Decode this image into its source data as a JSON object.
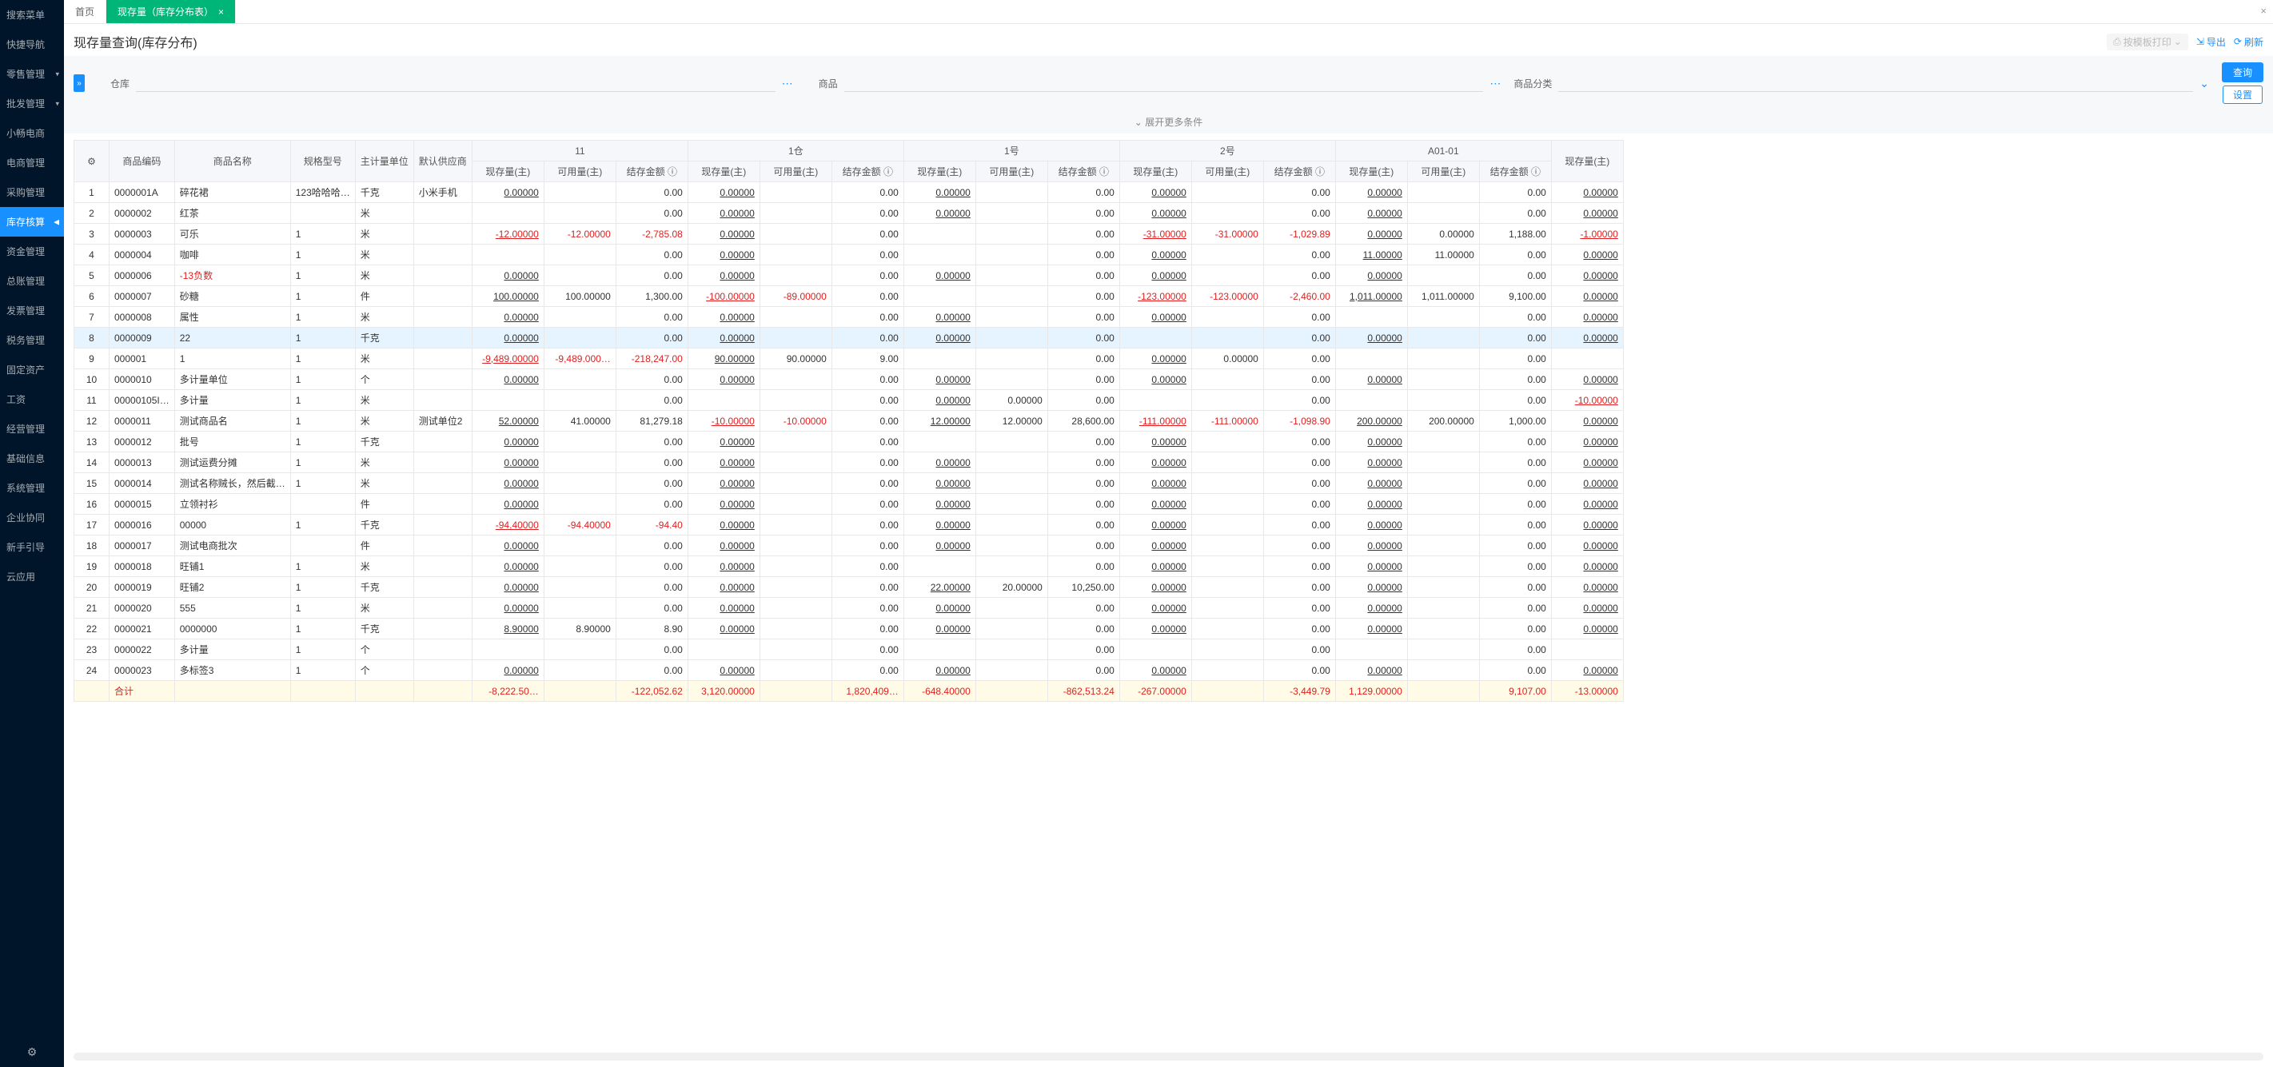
{
  "sidebar": {
    "items": [
      {
        "label": "搜索菜单",
        "hasArrow": false
      },
      {
        "label": "快捷导航",
        "hasArrow": false
      },
      {
        "label": "零售管理",
        "hasArrow": true
      },
      {
        "label": "批发管理",
        "hasArrow": true
      },
      {
        "label": "小畅电商",
        "hasArrow": false
      },
      {
        "label": "电商管理",
        "hasArrow": false
      },
      {
        "label": "采购管理",
        "hasArrow": false
      },
      {
        "label": "库存核算",
        "hasArrow": false,
        "active": true
      },
      {
        "label": "资金管理",
        "hasArrow": false
      },
      {
        "label": "总账管理",
        "hasArrow": false
      },
      {
        "label": "发票管理",
        "hasArrow": false
      },
      {
        "label": "税务管理",
        "hasArrow": false
      },
      {
        "label": "固定资产",
        "hasArrow": false
      },
      {
        "label": "工资",
        "hasArrow": false
      },
      {
        "label": "经营管理",
        "hasArrow": false
      },
      {
        "label": "基础信息",
        "hasArrow": false
      },
      {
        "label": "系统管理",
        "hasArrow": false
      },
      {
        "label": "企业协同",
        "hasArrow": false
      },
      {
        "label": "新手引导",
        "hasArrow": false
      },
      {
        "label": "云应用",
        "hasArrow": false
      }
    ],
    "gear_icon": "⚙"
  },
  "tabs": [
    {
      "label": "首页",
      "active": false
    },
    {
      "label": "现存量（库存分布表）",
      "active": true,
      "closable": true
    }
  ],
  "close_icon": "×",
  "page": {
    "title": "现存量查询(库存分布)",
    "actions": {
      "print": "按模板打印",
      "export": "导出",
      "refresh": "刷新",
      "print_icon": "⎙",
      "export_icon": "⇲",
      "refresh_icon": "⟳"
    }
  },
  "filters": {
    "collapse_icon": "»",
    "warehouse_label": "仓库",
    "product_label": "商品",
    "category_label": "商品分类",
    "more_icon": "⋯",
    "dropdown_icon": "⌄",
    "query_btn": "查询",
    "setting_btn": "设置",
    "expand_more": "展开更多条件",
    "expand_icon": "⌄"
  },
  "warehouses": [
    "11",
    "1仓",
    "1号",
    "2号",
    "A01-01"
  ],
  "sub_cols": {
    "qty": "现存量(主)",
    "avail": "可用量(主)",
    "amt": "结存金额 ⓘ"
  },
  "fixed_cols": {
    "gear": "⚙",
    "code": "商品编码",
    "name": "商品名称",
    "spec": "规格型号",
    "unit": "主计量单位",
    "supplier": "默认供应商"
  },
  "rows": [
    {
      "i": 1,
      "code": "0000001A",
      "name": "碎花裙",
      "spec": "123哈哈哈…",
      "unit": "千克",
      "supp": "小米手机",
      "v": [
        [
          "0.00000",
          "",
          "0.00"
        ],
        [
          "0.00000",
          "",
          "0.00"
        ],
        [
          "0.00000",
          "",
          "0.00"
        ],
        [
          "0.00000",
          "",
          "0.00"
        ],
        [
          "0.00000",
          "",
          "0.00"
        ]
      ],
      "next": "0.00000"
    },
    {
      "i": 2,
      "code": "0000002",
      "name": "红茶",
      "spec": "",
      "unit": "米",
      "supp": "",
      "v": [
        [
          "",
          "",
          "0.00"
        ],
        [
          "0.00000",
          "",
          "0.00"
        ],
        [
          "0.00000",
          "",
          "0.00"
        ],
        [
          "0.00000",
          "",
          "0.00"
        ],
        [
          "0.00000",
          "",
          "0.00"
        ]
      ],
      "next": "0.00000"
    },
    {
      "i": 3,
      "code": "0000003",
      "name": "可乐",
      "spec": "1",
      "unit": "米",
      "supp": "",
      "v": [
        [
          "-12.00000",
          "-12.00000",
          "-2,785.08"
        ],
        [
          "0.00000",
          "",
          "0.00"
        ],
        [
          "",
          "",
          "0.00"
        ],
        [
          "-31.00000",
          "-31.00000",
          "-1,029.89"
        ],
        [
          "0.00000",
          "0.00000",
          "1,188.00"
        ]
      ],
      "next": "-1.00000"
    },
    {
      "i": 4,
      "code": "0000004",
      "name": "咖啡",
      "spec": "1",
      "unit": "米",
      "supp": "",
      "v": [
        [
          "",
          "",
          "0.00"
        ],
        [
          "0.00000",
          "",
          "0.00"
        ],
        [
          "",
          "",
          "0.00"
        ],
        [
          "0.00000",
          "",
          "0.00"
        ],
        [
          "11.00000",
          "11.00000",
          "0.00"
        ]
      ],
      "next": "0.00000"
    },
    {
      "i": 5,
      "code": "0000006",
      "name": "-13负数",
      "nameNeg": true,
      "spec": "1",
      "unit": "米",
      "supp": "",
      "v": [
        [
          "0.00000",
          "",
          "0.00"
        ],
        [
          "0.00000",
          "",
          "0.00"
        ],
        [
          "0.00000",
          "",
          "0.00"
        ],
        [
          "0.00000",
          "",
          "0.00"
        ],
        [
          "0.00000",
          "",
          "0.00"
        ]
      ],
      "next": "0.00000"
    },
    {
      "i": 6,
      "code": "0000007",
      "name": "砂糖",
      "spec": "1",
      "unit": "件",
      "supp": "",
      "v": [
        [
          "100.00000",
          "100.00000",
          "1,300.00"
        ],
        [
          "-100.00000",
          "-89.00000",
          "0.00"
        ],
        [
          "",
          "",
          "0.00"
        ],
        [
          "-123.00000",
          "-123.00000",
          "-2,460.00"
        ],
        [
          "1,011.00000",
          "1,011.00000",
          "9,100.00"
        ]
      ],
      "next": "0.00000"
    },
    {
      "i": 7,
      "code": "0000008",
      "name": "属性",
      "spec": "1",
      "unit": "米",
      "supp": "",
      "v": [
        [
          "0.00000",
          "",
          "0.00"
        ],
        [
          "0.00000",
          "",
          "0.00"
        ],
        [
          "0.00000",
          "",
          "0.00"
        ],
        [
          "0.00000",
          "",
          "0.00"
        ],
        [
          "",
          "",
          "0.00"
        ]
      ],
      "next": "0.00000"
    },
    {
      "i": 8,
      "code": "0000009",
      "name": "22",
      "spec": "1",
      "unit": "千克",
      "supp": "",
      "highlight": true,
      "v": [
        [
          "0.00000",
          "",
          "0.00"
        ],
        [
          "0.00000",
          "",
          "0.00"
        ],
        [
          "0.00000",
          "",
          "0.00"
        ],
        [
          "",
          "",
          "0.00"
        ],
        [
          "0.00000",
          "",
          "0.00"
        ]
      ],
      "next": "0.00000"
    },
    {
      "i": 9,
      "code": "000001",
      "name": "1",
      "spec": "1",
      "unit": "米",
      "supp": "",
      "v": [
        [
          "-9,489.00000",
          "-9,489.000…",
          "-218,247.00"
        ],
        [
          "90.00000",
          "90.00000",
          "9.00"
        ],
        [
          "",
          "",
          "0.00"
        ],
        [
          "0.00000",
          "0.00000",
          "0.00"
        ],
        [
          "",
          "",
          "0.00"
        ]
      ],
      "next": ""
    },
    {
      "i": 10,
      "code": "0000010",
      "name": "多计量单位",
      "spec": "1",
      "unit": "个",
      "supp": "",
      "v": [
        [
          "0.00000",
          "",
          "0.00"
        ],
        [
          "0.00000",
          "",
          "0.00"
        ],
        [
          "0.00000",
          "",
          "0.00"
        ],
        [
          "0.00000",
          "",
          "0.00"
        ],
        [
          "0.00000",
          "",
          "0.00"
        ]
      ],
      "next": "0.00000"
    },
    {
      "i": 11,
      "code": "00000105I…",
      "name": "多计量",
      "spec": "1",
      "unit": "米",
      "supp": "",
      "v": [
        [
          "",
          "",
          "0.00"
        ],
        [
          "",
          "",
          "0.00"
        ],
        [
          "0.00000",
          "0.00000",
          "0.00"
        ],
        [
          "",
          "",
          "0.00"
        ],
        [
          "",
          "",
          "0.00"
        ]
      ],
      "next": "-10.00000"
    },
    {
      "i": 12,
      "code": "0000011",
      "name": "测试商品名",
      "spec": "1",
      "unit": "米",
      "supp": "测试单位2",
      "v": [
        [
          "52.00000",
          "41.00000",
          "81,279.18"
        ],
        [
          "-10.00000",
          "-10.00000",
          "0.00"
        ],
        [
          "12.00000",
          "12.00000",
          "28,600.00"
        ],
        [
          "-111.00000",
          "-111.00000",
          "-1,098.90"
        ],
        [
          "200.00000",
          "200.00000",
          "1,000.00"
        ]
      ],
      "next": "0.00000"
    },
    {
      "i": 13,
      "code": "0000012",
      "name": "批号",
      "spec": "1",
      "unit": "千克",
      "supp": "",
      "v": [
        [
          "0.00000",
          "",
          "0.00"
        ],
        [
          "0.00000",
          "",
          "0.00"
        ],
        [
          "",
          "",
          "0.00"
        ],
        [
          "0.00000",
          "",
          "0.00"
        ],
        [
          "0.00000",
          "",
          "0.00"
        ]
      ],
      "next": "0.00000"
    },
    {
      "i": 14,
      "code": "0000013",
      "name": "测试运费分摊",
      "spec": "1",
      "unit": "米",
      "supp": "",
      "v": [
        [
          "0.00000",
          "",
          "0.00"
        ],
        [
          "0.00000",
          "",
          "0.00"
        ],
        [
          "0.00000",
          "",
          "0.00"
        ],
        [
          "0.00000",
          "",
          "0.00"
        ],
        [
          "0.00000",
          "",
          "0.00"
        ]
      ],
      "next": "0.00000"
    },
    {
      "i": 15,
      "code": "0000014",
      "name": "测试名称贼长，然后截…",
      "spec": "1",
      "unit": "米",
      "supp": "",
      "v": [
        [
          "0.00000",
          "",
          "0.00"
        ],
        [
          "0.00000",
          "",
          "0.00"
        ],
        [
          "0.00000",
          "",
          "0.00"
        ],
        [
          "0.00000",
          "",
          "0.00"
        ],
        [
          "0.00000",
          "",
          "0.00"
        ]
      ],
      "next": "0.00000"
    },
    {
      "i": 16,
      "code": "0000015",
      "name": "立领衬衫",
      "spec": "",
      "unit": "件",
      "supp": "",
      "v": [
        [
          "0.00000",
          "",
          "0.00"
        ],
        [
          "0.00000",
          "",
          "0.00"
        ],
        [
          "0.00000",
          "",
          "0.00"
        ],
        [
          "0.00000",
          "",
          "0.00"
        ],
        [
          "0.00000",
          "",
          "0.00"
        ]
      ],
      "next": "0.00000"
    },
    {
      "i": 17,
      "code": "0000016",
      "name": "00000",
      "spec": "1",
      "unit": "千克",
      "supp": "",
      "v": [
        [
          "-94.40000",
          "-94.40000",
          "-94.40"
        ],
        [
          "0.00000",
          "",
          "0.00"
        ],
        [
          "0.00000",
          "",
          "0.00"
        ],
        [
          "0.00000",
          "",
          "0.00"
        ],
        [
          "0.00000",
          "",
          "0.00"
        ]
      ],
      "next": "0.00000"
    },
    {
      "i": 18,
      "code": "0000017",
      "name": "测试电商批次",
      "spec": "",
      "unit": "件",
      "supp": "",
      "v": [
        [
          "0.00000",
          "",
          "0.00"
        ],
        [
          "0.00000",
          "",
          "0.00"
        ],
        [
          "0.00000",
          "",
          "0.00"
        ],
        [
          "0.00000",
          "",
          "0.00"
        ],
        [
          "0.00000",
          "",
          "0.00"
        ]
      ],
      "next": "0.00000"
    },
    {
      "i": 19,
      "code": "0000018",
      "name": "旺铺1",
      "spec": "1",
      "unit": "米",
      "supp": "",
      "v": [
        [
          "0.00000",
          "",
          "0.00"
        ],
        [
          "0.00000",
          "",
          "0.00"
        ],
        [
          "",
          "",
          "0.00"
        ],
        [
          "0.00000",
          "",
          "0.00"
        ],
        [
          "0.00000",
          "",
          "0.00"
        ]
      ],
      "next": "0.00000"
    },
    {
      "i": 20,
      "code": "0000019",
      "name": "旺铺2",
      "spec": "1",
      "unit": "千克",
      "supp": "",
      "v": [
        [
          "0.00000",
          "",
          "0.00"
        ],
        [
          "0.00000",
          "",
          "0.00"
        ],
        [
          "22.00000",
          "20.00000",
          "10,250.00"
        ],
        [
          "0.00000",
          "",
          "0.00"
        ],
        [
          "0.00000",
          "",
          "0.00"
        ]
      ],
      "next": "0.00000"
    },
    {
      "i": 21,
      "code": "0000020",
      "name": "555",
      "spec": "1",
      "unit": "米",
      "supp": "",
      "v": [
        [
          "0.00000",
          "",
          "0.00"
        ],
        [
          "0.00000",
          "",
          "0.00"
        ],
        [
          "0.00000",
          "",
          "0.00"
        ],
        [
          "0.00000",
          "",
          "0.00"
        ],
        [
          "0.00000",
          "",
          "0.00"
        ]
      ],
      "next": "0.00000"
    },
    {
      "i": 22,
      "code": "0000021",
      "name": "0000000",
      "spec": "1",
      "unit": "千克",
      "supp": "",
      "v": [
        [
          "8.90000",
          "8.90000",
          "8.90"
        ],
        [
          "0.00000",
          "",
          "0.00"
        ],
        [
          "0.00000",
          "",
          "0.00"
        ],
        [
          "0.00000",
          "",
          "0.00"
        ],
        [
          "0.00000",
          "",
          "0.00"
        ]
      ],
      "next": "0.00000"
    },
    {
      "i": 23,
      "code": "0000022",
      "name": "多计量",
      "spec": "1",
      "unit": "个",
      "supp": "",
      "v": [
        [
          "",
          "",
          "0.00"
        ],
        [
          "",
          "",
          "0.00"
        ],
        [
          "",
          "",
          "0.00"
        ],
        [
          "",
          "",
          "0.00"
        ],
        [
          "",
          "",
          "0.00"
        ]
      ],
      "next": ""
    },
    {
      "i": 24,
      "code": "0000023",
      "name": "多标签3",
      "spec": "1",
      "unit": "个",
      "supp": "",
      "v": [
        [
          "0.00000",
          "",
          "0.00"
        ],
        [
          "0.00000",
          "",
          "0.00"
        ],
        [
          "0.00000",
          "",
          "0.00"
        ],
        [
          "0.00000",
          "",
          "0.00"
        ],
        [
          "0.00000",
          "",
          "0.00"
        ]
      ],
      "next": "0.00000"
    }
  ],
  "total": {
    "label": "合计",
    "v": [
      [
        "-8,222.50…",
        "",
        "-122,052.62"
      ],
      [
        "3,120.00000",
        "",
        "1,820,409…"
      ],
      [
        "-648.40000",
        "",
        "-862,513.24"
      ],
      [
        "-267.00000",
        "",
        "-3,449.79"
      ],
      [
        "1,129.00000",
        "",
        "9,107.00"
      ]
    ],
    "next": "-13.00000"
  }
}
